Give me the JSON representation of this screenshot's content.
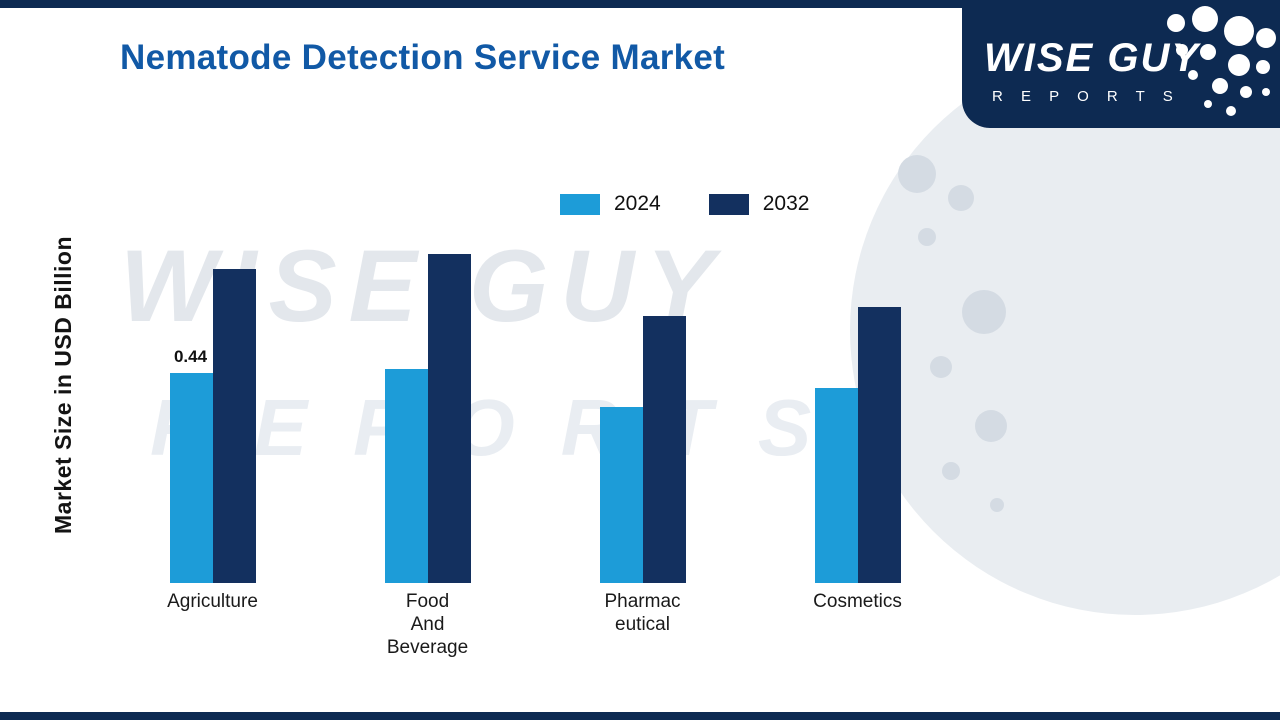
{
  "title": "Nematode Detection Service Market",
  "logo": {
    "name": "WISE GUY",
    "sub": "R E P O R T S"
  },
  "watermark": {
    "line1": "WISE GUY",
    "line2": "REPORTS"
  },
  "chart_data": {
    "type": "bar",
    "title": "Nematode Detection Service Market",
    "ylabel": "Market Size in USD Billion",
    "xlabel": "",
    "categories": [
      "Agriculture",
      "Food\nAnd\nBeverage",
      "Pharmac\neutical",
      "Cosmetics"
    ],
    "series": [
      {
        "name": "2024",
        "color": "#1d9cd8",
        "values": [
          0.44,
          0.45,
          0.37,
          0.41
        ]
      },
      {
        "name": "2032",
        "color": "#13305f",
        "values": [
          0.66,
          0.69,
          0.56,
          0.58
        ]
      }
    ],
    "annotations": [
      {
        "category": 0,
        "series": 0,
        "text": "0.44"
      }
    ],
    "ylim": [
      0,
      0.72
    ],
    "grid": false,
    "legend_position": "top"
  },
  "colors": {
    "title": "#1159a6",
    "accent_navy": "#0d2a52",
    "bar_2024": "#1d9cd8",
    "bar_2032": "#13305f",
    "watermark": "#e3e7ec"
  }
}
